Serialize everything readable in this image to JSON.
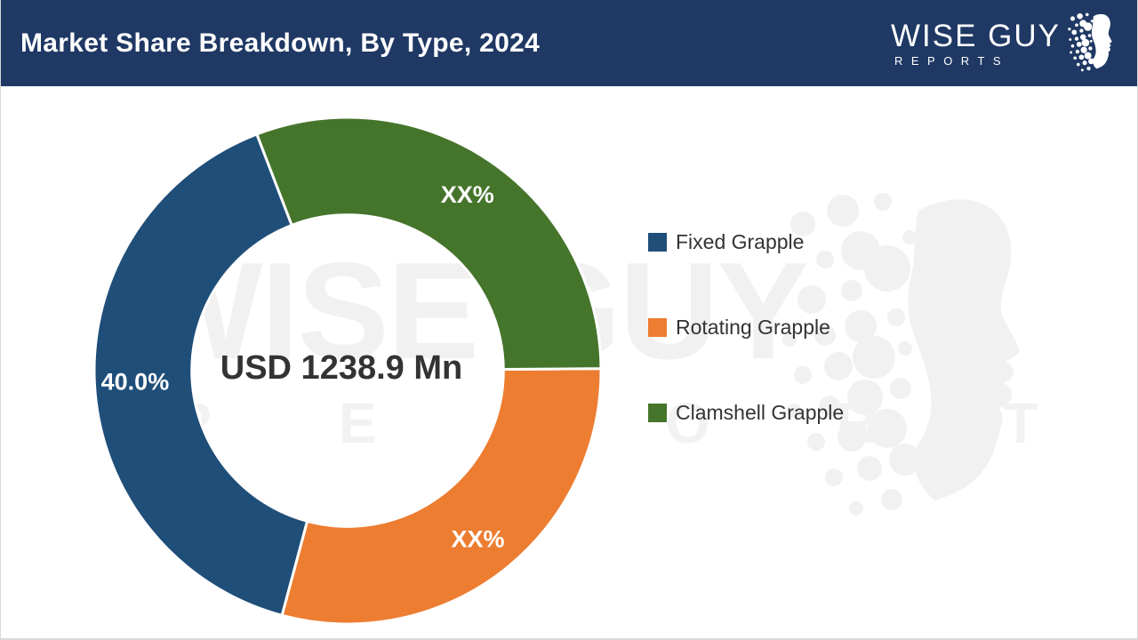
{
  "header": {
    "title": "Market Share Breakdown, By Type, 2024",
    "bg_color": "#1f3864",
    "logo": {
      "line1": "WISE GUY",
      "line2": "REPORTS"
    }
  },
  "chart_data": {
    "type": "pie",
    "subtype": "donut",
    "title": "Market Share Breakdown, By Type, 2024",
    "center_label": "USD 1238.9 Mn",
    "categories": [
      "Fixed Grapple",
      "Rotating Grapple",
      "Clamshell Grapple"
    ],
    "values": [
      40.0,
      29.3,
      30.7
    ],
    "value_labels": [
      "40.0%",
      "XX%",
      "XX%"
    ],
    "colors": [
      "#1f4e79",
      "#ed7d31",
      "#45752b"
    ],
    "start_angle_deg": 111,
    "counterclockwise": true,
    "donut_hole_ratio": 0.615,
    "slice_edge_color": "#ffffff",
    "legend_position": "right"
  },
  "legend": {
    "items": [
      {
        "label": "Fixed Grapple",
        "color": "#1f4e79"
      },
      {
        "label": "Rotating Grapple",
        "color": "#ed7d31"
      },
      {
        "label": "Clamshell Grapple",
        "color": "#45752b"
      }
    ]
  },
  "watermark": {
    "line1": "WISE GUY",
    "line2": "R E P O R T S"
  }
}
